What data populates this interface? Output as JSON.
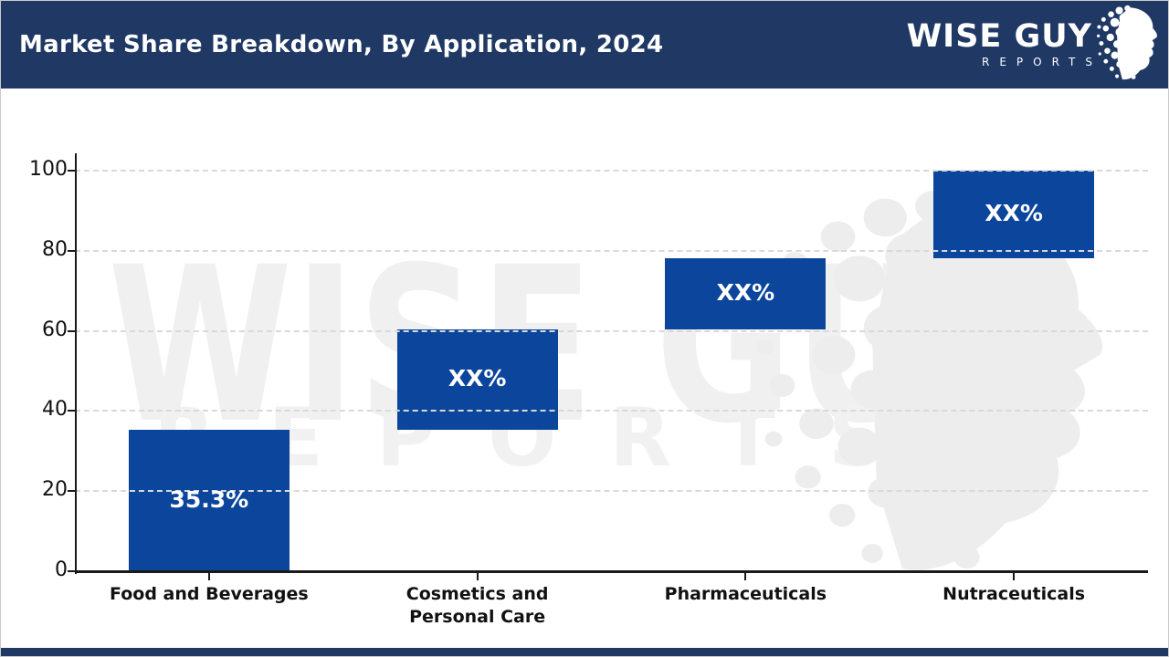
{
  "page": {
    "bg_color": "#ffffff",
    "frame_border_color": "#c9c9c9"
  },
  "header": {
    "bg_color": "#1f3864",
    "title": "Market Share Breakdown, By Application, 2024",
    "logo": {
      "line1": "WISE GUY",
      "line2": "REPORTS"
    }
  },
  "footer": {
    "bg_color": "#1f3864"
  },
  "watermark": {
    "line1": "WISE GUY",
    "line2": "REPORTS"
  },
  "chart_data": {
    "type": "bar",
    "subtype": "waterfall",
    "title": "Market Share Breakdown, By Application, 2024",
    "categories": [
      "Food and Beverages",
      "Cosmetics and Personal Care",
      "Pharmaceuticals",
      "Nutraceuticals"
    ],
    "category_label_lines": [
      [
        "Food and Beverages"
      ],
      [
        "Cosmetics and",
        "Personal Care"
      ],
      [
        "Pharmaceuticals"
      ],
      [
        "Nutraceuticals"
      ]
    ],
    "series": [
      {
        "name": "Market share (%)",
        "segments": [
          {
            "category": "Food and Beverages",
            "start": 0,
            "end": 35.3,
            "value": 35.3,
            "label": "35.3%"
          },
          {
            "category": "Cosmetics and Personal Care",
            "start": 35.3,
            "end": 60.3,
            "value": 25.0,
            "label": "XX%"
          },
          {
            "category": "Pharmaceuticals",
            "start": 60.3,
            "end": 78.1,
            "value": 17.8,
            "label": "XX%"
          },
          {
            "category": "Nutraceuticals",
            "start": 78.1,
            "end": 100.0,
            "value": 21.9,
            "label": "XX%"
          }
        ]
      }
    ],
    "ylim": [
      0,
      104
    ],
    "yticks": [
      0,
      20,
      40,
      60,
      80,
      100
    ],
    "grid": "horizontal-dashed",
    "legend": "none",
    "xlabel": "",
    "ylabel": "",
    "bar_color": "#0c459c",
    "bar_label_color": "#ffffff",
    "axis_color": "#1a1a1a",
    "gridline_color": "#d9d9d9",
    "tick_label_color": "#111111"
  }
}
